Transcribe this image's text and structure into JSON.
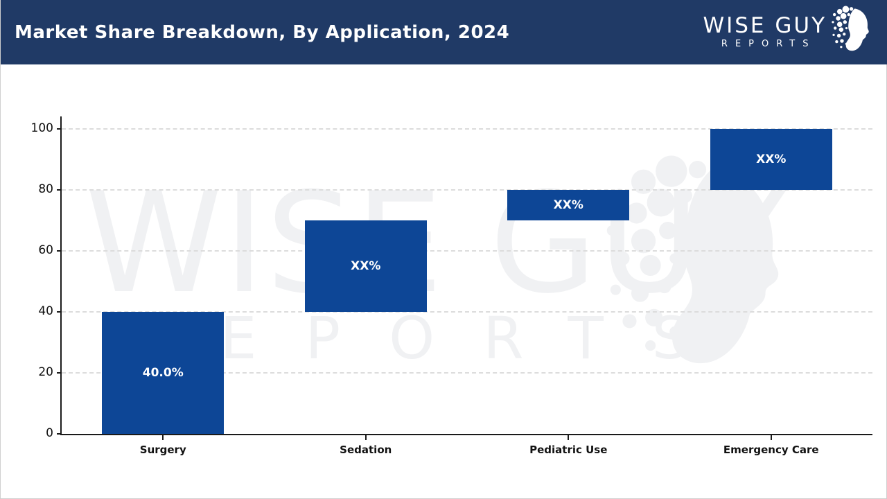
{
  "header": {
    "title": "Market Share Breakdown, By Application, 2024",
    "bg_color": "#203a66",
    "logo": {
      "line1": "WISE GUY",
      "line2": "REPORTS"
    }
  },
  "watermark": {
    "line1": "WISE GUY",
    "line2": "REPORTS"
  },
  "chart_data": {
    "type": "bar",
    "variant": "waterfall",
    "title": "Market Share Breakdown, By Application, 2024",
    "categories": [
      "Surgery",
      "Sedation",
      "Pediatric Use",
      "Emergency Care"
    ],
    "segments": [
      {
        "category": "Surgery",
        "start": 0,
        "end": 40,
        "label": "40.0%"
      },
      {
        "category": "Sedation",
        "start": 40,
        "end": 70,
        "label": "XX%"
      },
      {
        "category": "Pediatric Use",
        "start": 70,
        "end": 80,
        "label": "XX%"
      },
      {
        "category": "Emergency Care",
        "start": 80,
        "end": 100,
        "label": "XX%"
      }
    ],
    "ylim": [
      0,
      100
    ],
    "yticks": [
      0,
      20,
      40,
      60,
      80,
      100
    ],
    "xlabel": "",
    "ylabel": "",
    "grid": {
      "axis": "y",
      "style": "dashed",
      "color": "#dcdcdc"
    },
    "legend": "none",
    "bar_color": "#0d4696",
    "bar_label_color": "#ffffff",
    "axis_color": "#1a1a1a"
  }
}
